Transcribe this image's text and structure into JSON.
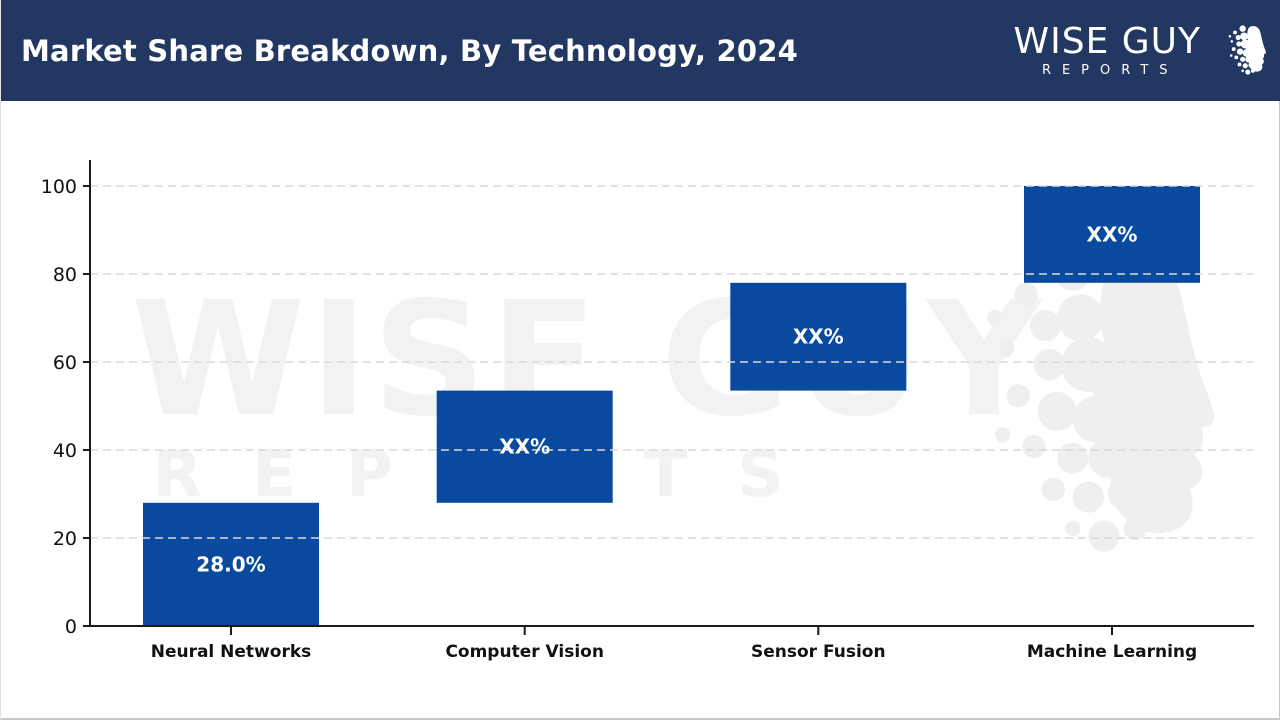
{
  "header": {
    "title": "Market Share Breakdown, By Technology, 2024",
    "logo": {
      "line1": "WISE GUY",
      "line2": "REPORTS"
    }
  },
  "watermark": {
    "line1": "WISE GUY",
    "line2": "REPORTS"
  },
  "colors": {
    "header_bg": "#223862",
    "bar": "#0a4a9e",
    "grid": "#d9d9d9",
    "axis": "#1a1a1a",
    "watermark": "#f2f2f2"
  },
  "chart_data": {
    "type": "bar",
    "subtype": "waterfall",
    "title": "Market Share Breakdown, By Technology, 2024",
    "categories": [
      "Neural Networks",
      "Computer Vision",
      "Sensor Fusion",
      "Machine Learning"
    ],
    "segments": [
      {
        "category": "Neural Networks",
        "start": 0,
        "end": 28,
        "label": "28.0%"
      },
      {
        "category": "Computer Vision",
        "start": 28,
        "end": 53.5,
        "label": "XX%"
      },
      {
        "category": "Sensor Fusion",
        "start": 53.5,
        "end": 78,
        "label": "XX%"
      },
      {
        "category": "Machine Learning",
        "start": 78,
        "end": 100,
        "label": "XX%"
      }
    ],
    "xlabel": "",
    "ylabel": "",
    "ylim": [
      0,
      106
    ],
    "yticks": [
      0,
      20,
      40,
      60,
      80,
      100
    ],
    "grid": "horizontal-dashed",
    "legend": "none"
  }
}
